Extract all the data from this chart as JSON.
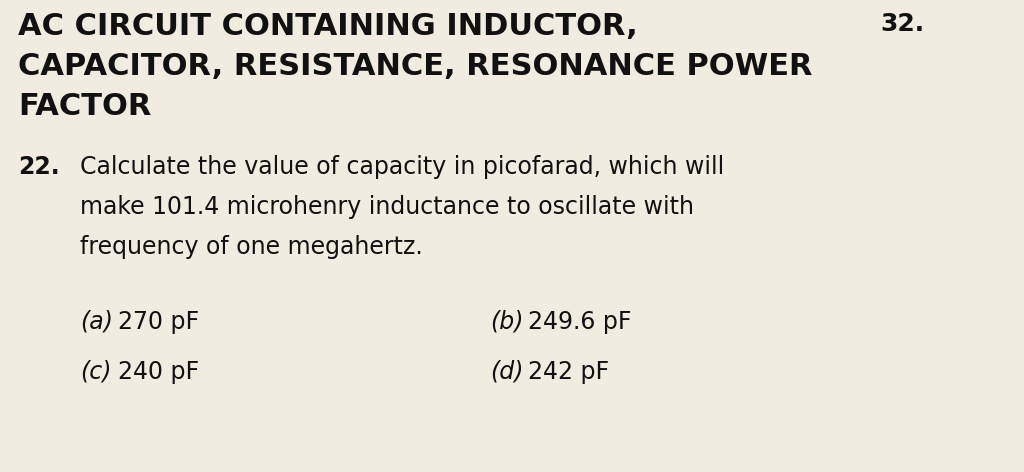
{
  "background_color": "#f0ece0",
  "title_line1": "AC CIRCUIT CONTAINING INDUCTOR,",
  "title_line2": "CAPACITOR, RESISTANCE, RESONANCE POWER",
  "title_line3": "FACTOR",
  "page_number": "32.",
  "question_number": "22.",
  "question_text_line1": "Calculate the value of capacity in picofarad, which will",
  "question_text_line2": "make 101.4 microhenry inductance to oscillate with",
  "question_text_line3": "frequency of one megahertz.",
  "option_a_label": "(a)",
  "option_a_val": "270 pF",
  "option_b_label": "(b)",
  "option_b_val": "249.6 pF",
  "option_c_label": "(c)",
  "option_c_val": "240 pF",
  "option_d_label": "(d)",
  "option_d_val": "242 pF",
  "title_fontsize": 22,
  "question_number_fontsize": 17,
  "question_text_fontsize": 17,
  "option_fontsize": 17,
  "page_number_fontsize": 18,
  "text_color": "#111111",
  "title_font_weight": "bold",
  "fig_width": 10.24,
  "fig_height": 4.72,
  "dpi": 100
}
